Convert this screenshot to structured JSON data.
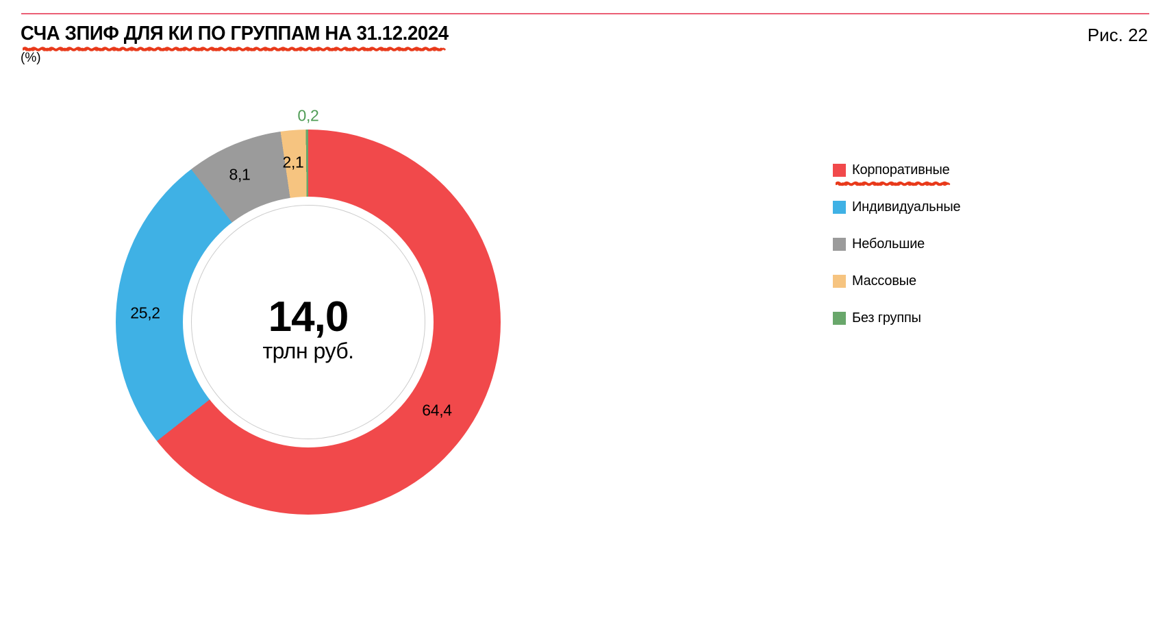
{
  "page": {
    "figure_label": "Рис. 22"
  },
  "header": {
    "title": "СЧА ЗПИФ ДЛЯ КИ ПО ГРУППАМ НА 31.12.2024",
    "unit_note": "(%)"
  },
  "colors": {
    "rule_line": "#EB5E74",
    "annotation": "#E8391A",
    "inner_ring": "#CBCBCB",
    "text": "#000000"
  },
  "chart_data": {
    "type": "pie",
    "donut": true,
    "title": "СЧА ЗПИФ ДЛЯ КИ ПО ГРУППАМ НА 31.12.2024",
    "unit": "%",
    "start_angle_deg": 0,
    "direction": "clockwise",
    "center_value": "14,0",
    "center_unit": "трлн руб.",
    "legend_position": "right",
    "series": [
      {
        "name": "Корпоративные",
        "value": 64.4,
        "label": "64,4",
        "color": "#F1494B",
        "label_color": "#000000"
      },
      {
        "name": "Индивидуальные",
        "value": 25.2,
        "label": "25,2",
        "color": "#3FB1E5",
        "label_color": "#000000"
      },
      {
        "name": "Небольшие",
        "value": 8.1,
        "label": "8,1",
        "color": "#9B9B9B",
        "label_color": "#000000"
      },
      {
        "name": "Массовые",
        "value": 2.1,
        "label": "2,1",
        "color": "#F6C480",
        "label_color": "#000000"
      },
      {
        "name": "Без группы",
        "value": 0.2,
        "label": "0,2",
        "color": "#69A76B",
        "label_color": "#4F9C55"
      }
    ]
  }
}
